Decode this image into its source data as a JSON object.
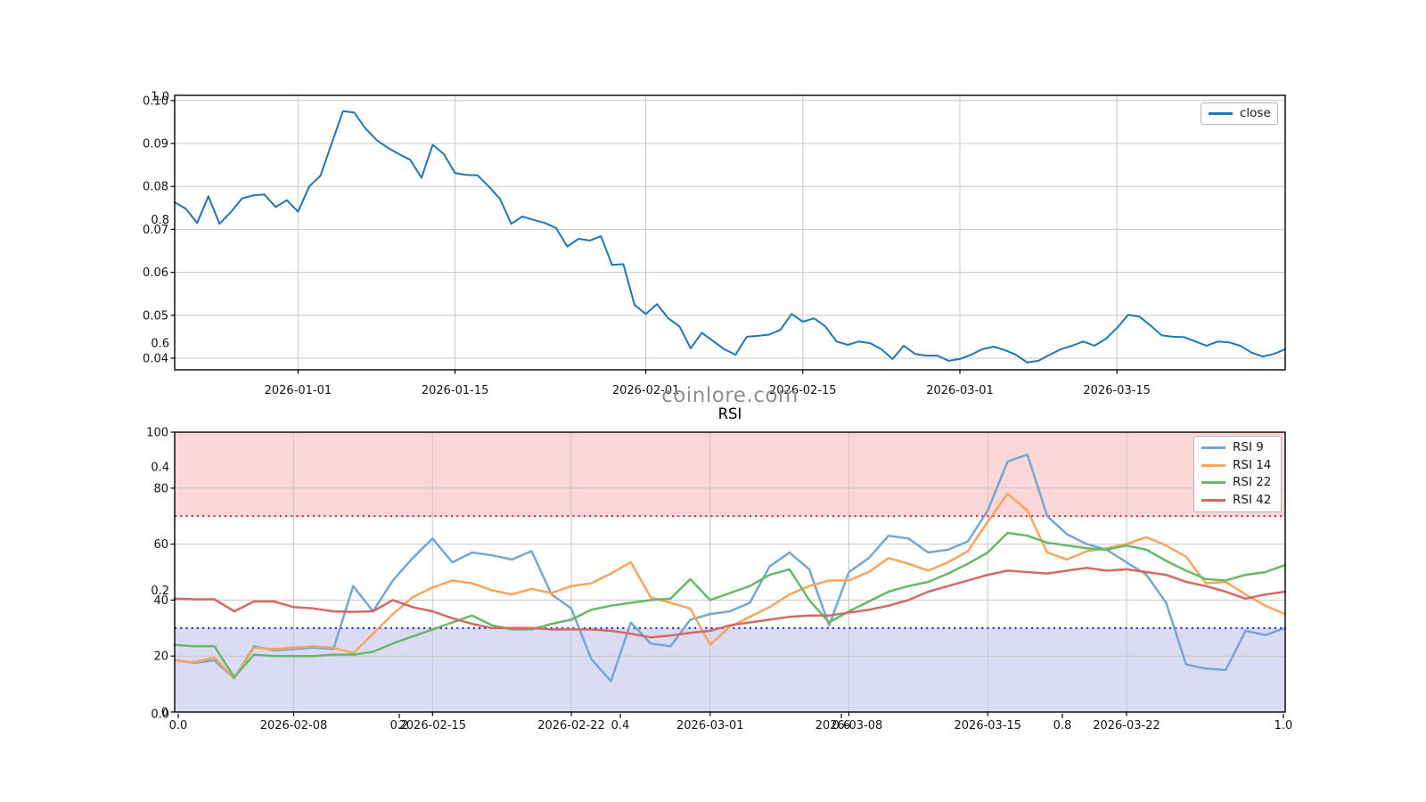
{
  "figure": {
    "watermark": "coinlore.com",
    "background": "#ffffff",
    "grid_color": "#c8c8c8",
    "spine_color": "#000000",
    "text_color": "#141414",
    "tick_font_px": 13
  },
  "overlay_axis": {
    "x_tick_labels": [
      "0.0",
      "0.2",
      "0.4",
      "0.6",
      "0.8",
      "1.0"
    ],
    "y_tick_labels": [
      "1.0",
      "0.8",
      "0.6",
      "0.4",
      "0.2",
      "0.0"
    ]
  },
  "chart_data": [
    {
      "id": "price",
      "type": "line",
      "title": "",
      "xlabel": "",
      "ylabel": "",
      "legend_position": "upper right",
      "grid": true,
      "x_range_dates": [
        "2025-12-21",
        "2026-03-30"
      ],
      "x_tick_labels": [
        "2026-01-01",
        "2026-01-15",
        "2026-02-01",
        "2026-02-15",
        "2026-03-01",
        "2026-03-15"
      ],
      "x_tick_index": [
        11,
        25,
        42,
        56,
        70,
        84
      ],
      "y_tick_labels": [
        "0.04",
        "0.05",
        "0.06",
        "0.07",
        "0.08",
        "0.09",
        "0.10"
      ],
      "y_ticks": [
        0.04,
        0.05,
        0.06,
        0.07,
        0.08,
        0.09,
        0.1
      ],
      "ylim": [
        0.0373,
        0.1012
      ],
      "series": [
        {
          "name": "close",
          "color": "#1f77b4",
          "width": 2,
          "values": [
            0.0763,
            0.0748,
            0.0715,
            0.0777,
            0.0713,
            0.074,
            0.0772,
            0.0779,
            0.0781,
            0.0752,
            0.0768,
            0.0741,
            0.08,
            0.0825,
            0.09,
            0.0975,
            0.0972,
            0.0935,
            0.0908,
            0.089,
            0.0875,
            0.0862,
            0.082,
            0.0897,
            0.0875,
            0.0831,
            0.0827,
            0.0826,
            0.08,
            0.0771,
            0.0713,
            0.073,
            0.0722,
            0.0715,
            0.0703,
            0.066,
            0.0678,
            0.0674,
            0.0684,
            0.0617,
            0.0619,
            0.0524,
            0.0503,
            0.0526,
            0.0493,
            0.0474,
            0.0423,
            0.0459,
            0.044,
            0.0421,
            0.0408,
            0.045,
            0.0452,
            0.0455,
            0.0466,
            0.0503,
            0.0485,
            0.0493,
            0.0474,
            0.0439,
            0.0431,
            0.0439,
            0.0435,
            0.0421,
            0.0398,
            0.0429,
            0.041,
            0.0406,
            0.0406,
            0.0394,
            0.0398,
            0.0408,
            0.0421,
            0.0427,
            0.0419,
            0.0408,
            0.039,
            0.0394,
            0.0408,
            0.0421,
            0.0429,
            0.0439,
            0.0429,
            0.0445,
            0.047,
            0.0501,
            0.0497,
            0.0476,
            0.0453,
            0.045,
            0.0449,
            0.0439,
            0.0429,
            0.0439,
            0.0437,
            0.0429,
            0.0413,
            0.0404,
            0.041,
            0.0421
          ]
        }
      ]
    },
    {
      "id": "rsi",
      "type": "line",
      "title": "RSI",
      "xlabel": "",
      "ylabel": "",
      "legend_position": "upper right",
      "grid": true,
      "x_range_dates": [
        "2026-02-02",
        "2026-03-30"
      ],
      "x_tick_labels": [
        "2026-02-08",
        "2026-02-15",
        "2026-02-22",
        "2026-03-01",
        "2026-03-08",
        "2026-03-15",
        "2026-03-22"
      ],
      "x_tick_index": [
        6,
        13,
        20,
        27,
        34,
        41,
        48
      ],
      "y_tick_labels": [
        "0",
        "20",
        "40",
        "60",
        "80",
        "100"
      ],
      "y_ticks": [
        0,
        20,
        40,
        60,
        80,
        100
      ],
      "ylim": [
        0,
        100
      ],
      "bands": [
        {
          "from": 70,
          "to": 100,
          "color": "#fbd7d8",
          "name": "overbought-zone"
        },
        {
          "from": 0,
          "to": 30,
          "color": "#dcdbf4",
          "name": "oversold-zone"
        }
      ],
      "hlines": [
        {
          "y": 70,
          "color": "#e8102e",
          "style": "dotted",
          "name": "overbought-threshold"
        },
        {
          "y": 30,
          "color": "#1414cc",
          "style": "dotted",
          "name": "oversold-threshold"
        }
      ],
      "series": [
        {
          "name": "RSI 9",
          "color": "#74a7d2",
          "width": 2.5,
          "values": [
            18.5,
            17.5,
            18.5,
            12.0,
            23.5,
            22.0,
            22.5,
            23.0,
            22.5,
            45.0,
            36.0,
            47.0,
            55.0,
            62.0,
            53.5,
            57.0,
            56.0,
            54.5,
            57.5,
            42.0,
            37.0,
            19.0,
            11.0,
            32.0,
            24.5,
            23.5,
            33.0,
            35.0,
            36.0,
            39.0,
            52.0,
            57.0,
            51.0,
            31.0,
            50.0,
            55.0,
            63.0,
            62.0,
            57.0,
            58.0,
            61.0,
            72.0,
            89.5,
            92.0,
            70.0,
            63.5,
            60.0,
            58.0,
            53.5,
            49.0,
            39.0,
            17.0,
            15.5,
            15.0,
            29.0,
            27.5,
            30.0
          ]
        },
        {
          "name": "RSI 14",
          "color": "#fba55c",
          "width": 2.5,
          "values": [
            18.5,
            17.8,
            19.5,
            12.0,
            23.0,
            22.5,
            23.0,
            23.5,
            23.0,
            21.0,
            28.0,
            35.0,
            41.0,
            44.5,
            47.0,
            46.0,
            43.5,
            42.0,
            44.0,
            42.5,
            45.0,
            46.0,
            49.5,
            53.5,
            41.0,
            39.0,
            37.0,
            24.0,
            30.5,
            34.0,
            37.5,
            42.0,
            45.0,
            47.0,
            47.0,
            50.0,
            55.0,
            53.0,
            50.5,
            53.5,
            57.5,
            68.0,
            78.0,
            72.0,
            57.0,
            54.5,
            57.5,
            58.5,
            60.0,
            62.5,
            59.5,
            55.5,
            46.0,
            46.5,
            42.0,
            38.0,
            35.0
          ]
        },
        {
          "name": "RSI 22",
          "color": "#67b868",
          "width": 2.5,
          "values": [
            24.0,
            23.5,
            23.5,
            12.5,
            20.5,
            20.0,
            20.0,
            20.0,
            20.5,
            20.5,
            21.5,
            24.5,
            27.0,
            29.5,
            32.0,
            34.5,
            31.0,
            29.5,
            29.5,
            31.5,
            33.0,
            36.5,
            38.0,
            39.0,
            40.0,
            40.5,
            47.5,
            40.0,
            42.5,
            45.0,
            49.0,
            51.0,
            40.0,
            32.0,
            36.0,
            39.5,
            43.0,
            45.0,
            46.5,
            49.5,
            53.0,
            57.0,
            64.0,
            63.0,
            60.5,
            59.5,
            58.5,
            58.0,
            59.5,
            58.0,
            54.0,
            50.5,
            47.5,
            47.0,
            49.0,
            50.0,
            52.5
          ]
        },
        {
          "name": "RSI 42",
          "color": "#d06b65",
          "width": 2.5,
          "values": [
            40.5,
            40.3,
            40.3,
            36.0,
            39.5,
            39.5,
            37.5,
            37.0,
            36.0,
            35.8,
            36.0,
            40.0,
            37.5,
            36.0,
            33.5,
            31.5,
            30.0,
            30.0,
            30.0,
            29.5,
            29.5,
            29.5,
            29.0,
            28.0,
            26.7,
            27.3,
            28.3,
            29.0,
            31.0,
            32.0,
            33.0,
            34.0,
            34.5,
            34.5,
            35.5,
            36.5,
            38.0,
            40.0,
            43.0,
            45.0,
            47.0,
            49.0,
            50.5,
            50.0,
            49.5,
            50.5,
            51.5,
            50.5,
            51.0,
            50.0,
            49.0,
            46.5,
            45.0,
            43.0,
            40.5,
            42.0,
            43.0
          ]
        }
      ]
    }
  ]
}
